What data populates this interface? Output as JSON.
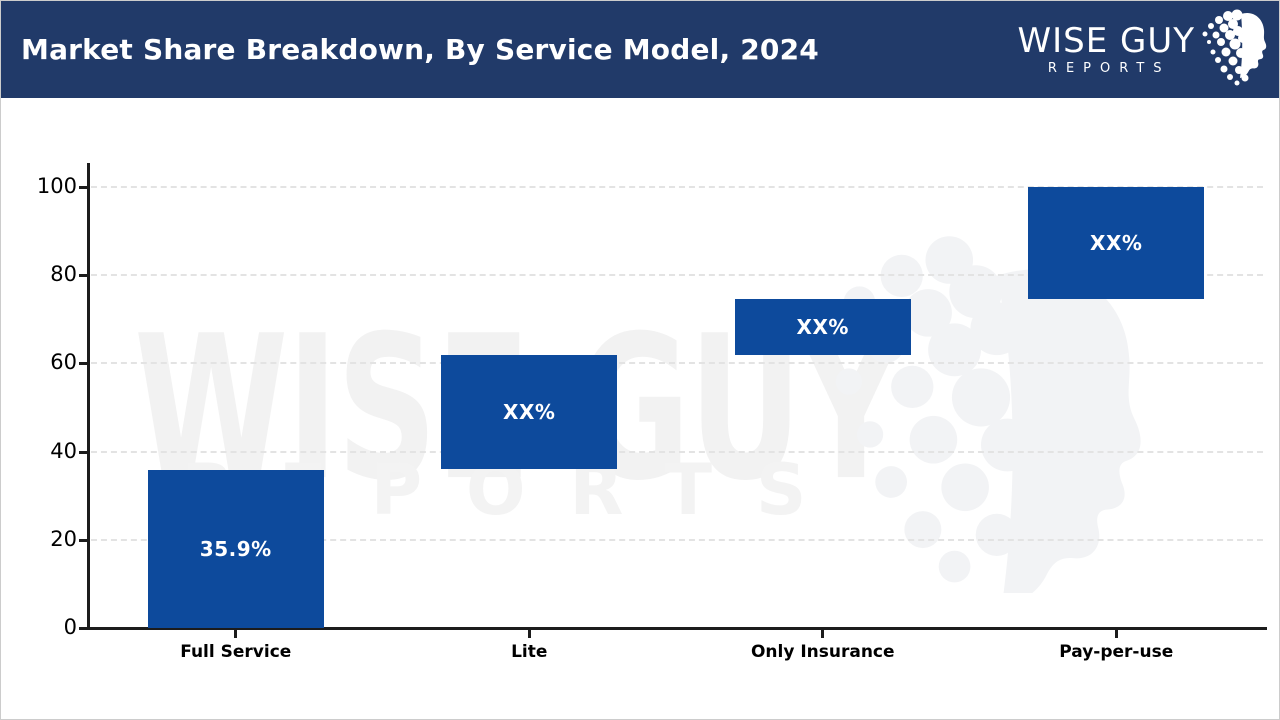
{
  "header": {
    "title": "Market Share Breakdown, By Service Model, 2024",
    "bg_color": "#213A69",
    "logo": {
      "name": "WISE GUY",
      "sub": "REPORTS"
    }
  },
  "watermark": {
    "line1": "WISE GUY",
    "line2": "REPORTS"
  },
  "chart_data": {
    "type": "bar",
    "subtype": "floating-waterfall",
    "title": "Market Share Breakdown, By Service Model, 2024",
    "xlabel": "",
    "ylabel": "",
    "categories": [
      "Full Service",
      "Lite",
      "Only Insurance",
      "Pay-per-use"
    ],
    "series": [
      {
        "category": "Full Service",
        "label": "35.9%",
        "start": 0,
        "end": 35.9,
        "value": 35.9
      },
      {
        "category": "Lite",
        "label": "XX%",
        "start": 36,
        "end": 62,
        "value": 26
      },
      {
        "category": "Only Insurance",
        "label": "XX%",
        "start": 62,
        "end": 74.5,
        "value": 12.5
      },
      {
        "category": "Pay-per-use",
        "label": "XX%",
        "start": 74.5,
        "end": 100,
        "value": 25.5
      }
    ],
    "yticks": [
      0,
      20,
      40,
      60,
      80,
      100
    ],
    "ylim": [
      0,
      106
    ],
    "bar_color": "#0D4A9C",
    "grid": {
      "horizontal_dashed": true,
      "color": "#E3E3E3"
    },
    "legend": "none"
  }
}
